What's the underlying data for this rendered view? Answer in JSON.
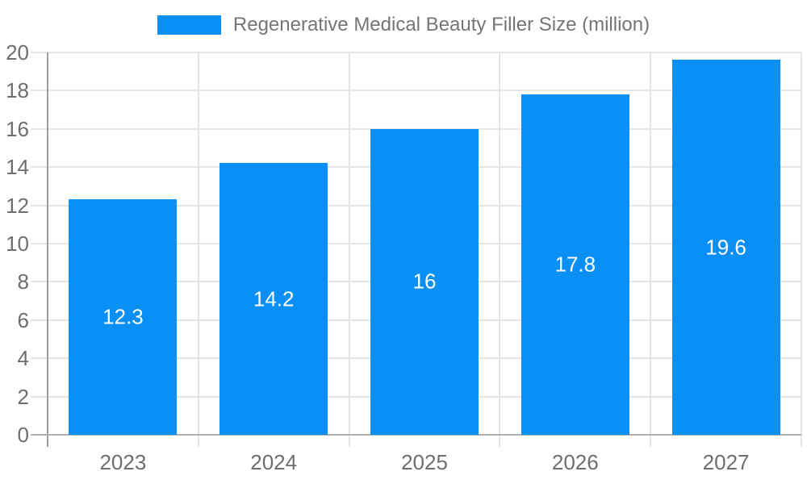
{
  "legend": {
    "label": "Regenerative Medical Beauty Filler Size (million)"
  },
  "chart_data": {
    "type": "bar",
    "title": "Regenerative Medical Beauty Filler Size (million)",
    "categories": [
      "2023",
      "2024",
      "2025",
      "2026",
      "2027"
    ],
    "values": [
      12.3,
      14.2,
      16,
      17.8,
      19.6
    ],
    "value_labels": [
      "12.3",
      "14.2",
      "16",
      "17.8",
      "19.6"
    ],
    "xlabel": "",
    "ylabel": "",
    "ylim": [
      0,
      20
    ],
    "yticks": [
      0,
      2,
      4,
      6,
      8,
      10,
      12,
      14,
      16,
      18,
      20
    ],
    "grid": true,
    "legend_position": "top-center",
    "colors": {
      "bar": "#0A8FF5",
      "gridline": "#E6E6E6",
      "y_axis": "#9E9E9E",
      "x_axis": "#B0B0B0",
      "axis_label": "#6E6E6E",
      "legend_text": "#757575",
      "value_label": "#FFFFFF",
      "background": "#FFFFFF"
    }
  }
}
